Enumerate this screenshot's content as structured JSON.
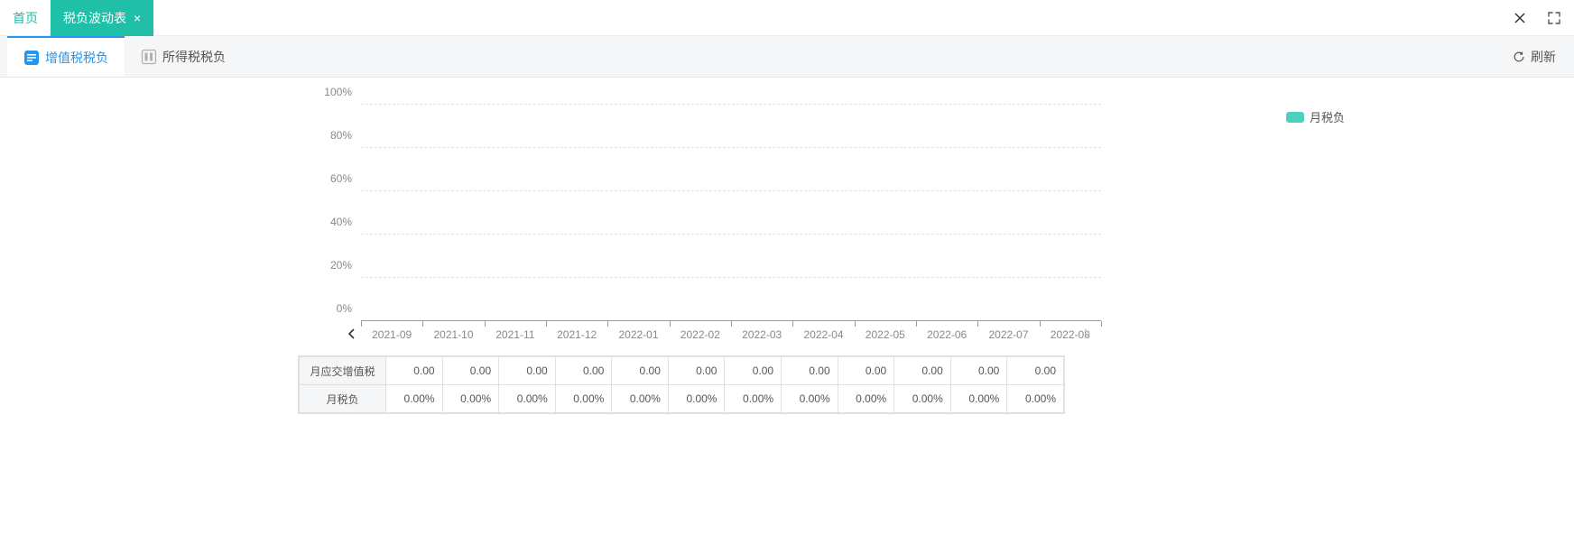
{
  "tabstrip": {
    "home_label": "首页",
    "tabs": [
      {
        "label": "税负波动表"
      }
    ]
  },
  "subtabs": {
    "items": [
      {
        "label": "增值税税负",
        "active": true,
        "icon_color": "#2196f3"
      },
      {
        "label": "所得税税负",
        "active": false,
        "icon_color": "#b0b0b0"
      }
    ],
    "refresh_label": "刷新"
  },
  "chart": {
    "type": "bar",
    "legend_label": "月税负",
    "legend_color": "#4ed0c0",
    "grid_color": "#e0e0e0",
    "axis_color": "#999999",
    "text_color": "#888888",
    "background_color": "#ffffff",
    "ylim": [
      0,
      100
    ],
    "yticks": [
      "0%",
      "20%",
      "40%",
      "60%",
      "80%",
      "100%"
    ],
    "ytick_values": [
      0,
      20,
      40,
      60,
      80,
      100
    ],
    "categories": [
      "2021-09",
      "2021-10",
      "2021-11",
      "2021-12",
      "2022-01",
      "2022-02",
      "2022-03",
      "2022-04",
      "2022-05",
      "2022-06",
      "2022-07",
      "2022-08"
    ],
    "values": [
      0,
      0,
      0,
      0,
      0,
      0,
      0,
      0,
      0,
      0,
      0,
      0
    ]
  },
  "table": {
    "row_headers": [
      "月应交增值税",
      "月税负"
    ],
    "rows": [
      [
        "0.00",
        "0.00",
        "0.00",
        "0.00",
        "0.00",
        "0.00",
        "0.00",
        "0.00",
        "0.00",
        "0.00",
        "0.00",
        "0.00"
      ],
      [
        "0.00%",
        "0.00%",
        "0.00%",
        "0.00%",
        "0.00%",
        "0.00%",
        "0.00%",
        "0.00%",
        "0.00%",
        "0.00%",
        "0.00%",
        "0.00%"
      ]
    ]
  }
}
